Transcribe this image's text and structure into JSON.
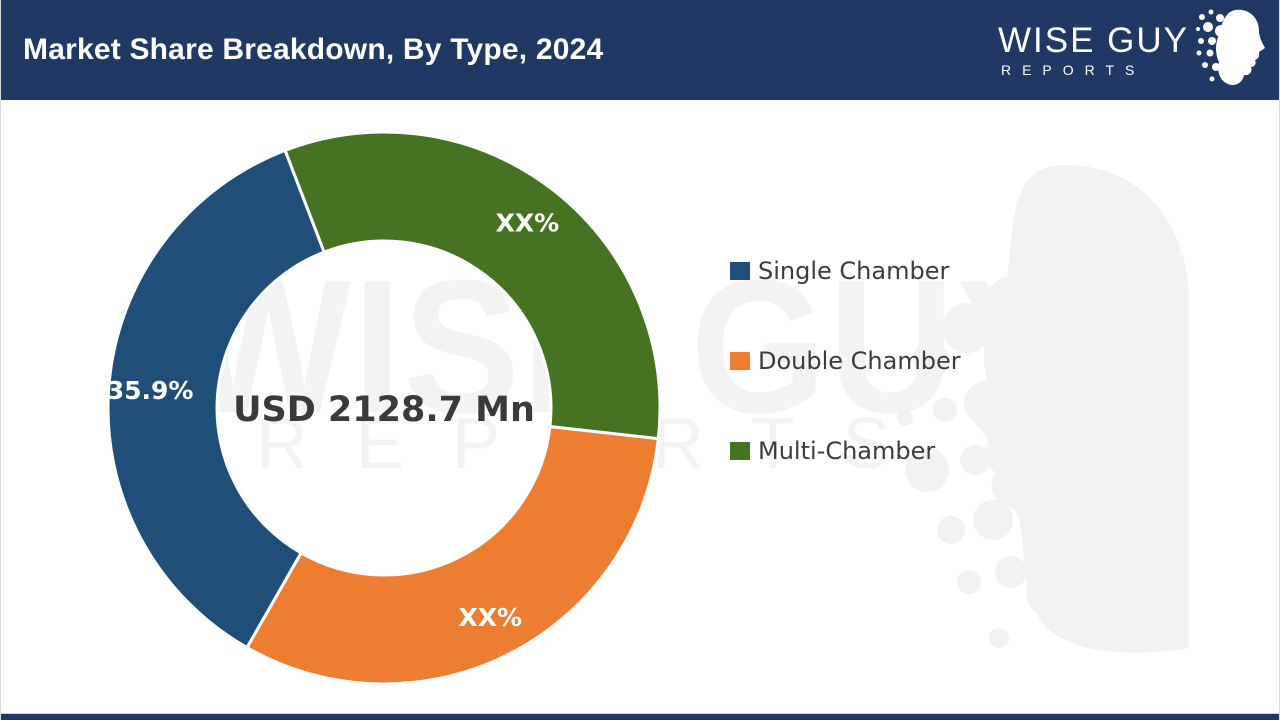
{
  "header": {
    "title": "Market Share Breakdown, By Type, 2024",
    "logo": {
      "line1": "WISE GUY",
      "line2": "REPORTS"
    }
  },
  "watermark": {
    "line1": "WISE GUY",
    "line2": "REPORTS"
  },
  "chart_data": {
    "type": "pie",
    "subtype": "donut",
    "title": "Market Share Breakdown, By Type, 2024",
    "center_label": "USD 2128.7 Mn",
    "units": "USD Mn",
    "legend_position": "right",
    "start_angle_deg": 111,
    "direction": "counterclockwise",
    "inner_radius_ratio": 0.605,
    "label_radius_ratio": 0.85,
    "categories": [
      "Single Chamber",
      "Double Chamber",
      "Multi-Chamber"
    ],
    "segments": [
      {
        "name": "Single Chamber",
        "display_label": "35.9%",
        "value_pct": 35.9,
        "color": "#1F4E78"
      },
      {
        "name": "Double Chamber",
        "display_label": "XX%",
        "value_pct": 31.5,
        "color": "#ED7D31"
      },
      {
        "name": "Multi-Chamber",
        "display_label": "XX%",
        "value_pct": 32.6,
        "color": "#467322"
      }
    ]
  },
  "colors": {
    "header_bg": "#203864",
    "footer_bg": "#203864",
    "center_text": "#3A3A3A",
    "legend_text": "#3C3C3C",
    "watermark": "#F3F3F4",
    "segment_stroke": "#FFFFFF"
  }
}
